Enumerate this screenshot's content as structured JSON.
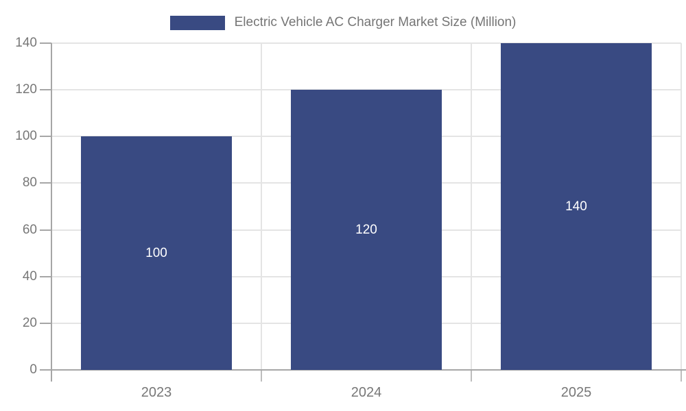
{
  "chart_data": {
    "type": "bar",
    "title": "Electric Vehicle AC Charger Market Size (Million)",
    "categories": [
      "2023",
      "2024",
      "2025"
    ],
    "values": [
      100,
      120,
      140
    ],
    "series": [
      {
        "name": "Electric Vehicle AC Charger Market Size (Million)",
        "values": [
          100,
          120,
          140
        ]
      }
    ],
    "data_labels": [
      "100",
      "120",
      "140"
    ],
    "xlabel": "",
    "ylabel": "",
    "ylim": [
      0,
      140
    ],
    "yticks": [
      0,
      20,
      40,
      60,
      80,
      100,
      120,
      140
    ],
    "grid": "on",
    "legend_position": "top-center",
    "bar_color": "#394a82",
    "data_label_color": "#ffffff",
    "axis_color": "#a6a6a6",
    "grid_color": "#e4e4e4",
    "tick_label_color": "#777777"
  }
}
